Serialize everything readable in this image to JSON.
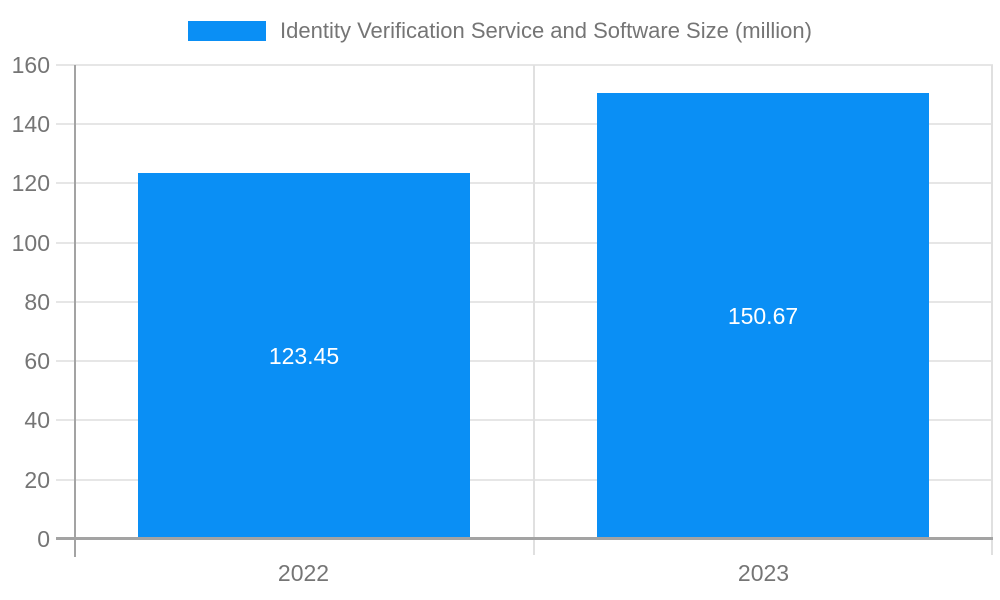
{
  "legend": {
    "series_label": "Identity Verification Service and Software Size (million)"
  },
  "colors": {
    "bar": "#0a8ff5",
    "label_text": "#757575",
    "bar_value_text": "#ffffff",
    "gridline": "#e6e6e6",
    "axis_line": "#a3a3a3"
  },
  "chart_data": {
    "type": "bar",
    "title": "Identity Verification Service and Software Size (million)",
    "categories": [
      "2022",
      "2023"
    ],
    "values": [
      123.45,
      150.67
    ],
    "value_labels": [
      "123.45",
      "150.67"
    ],
    "xlabel": "",
    "ylabel": "",
    "ylim": [
      0,
      160
    ],
    "ytick_interval": 20,
    "yticks": [
      "0",
      "20",
      "40",
      "60",
      "80",
      "100",
      "120",
      "140",
      "160"
    ],
    "grid": "on",
    "legend_position": "top",
    "bar_label_position": "center-inside"
  }
}
